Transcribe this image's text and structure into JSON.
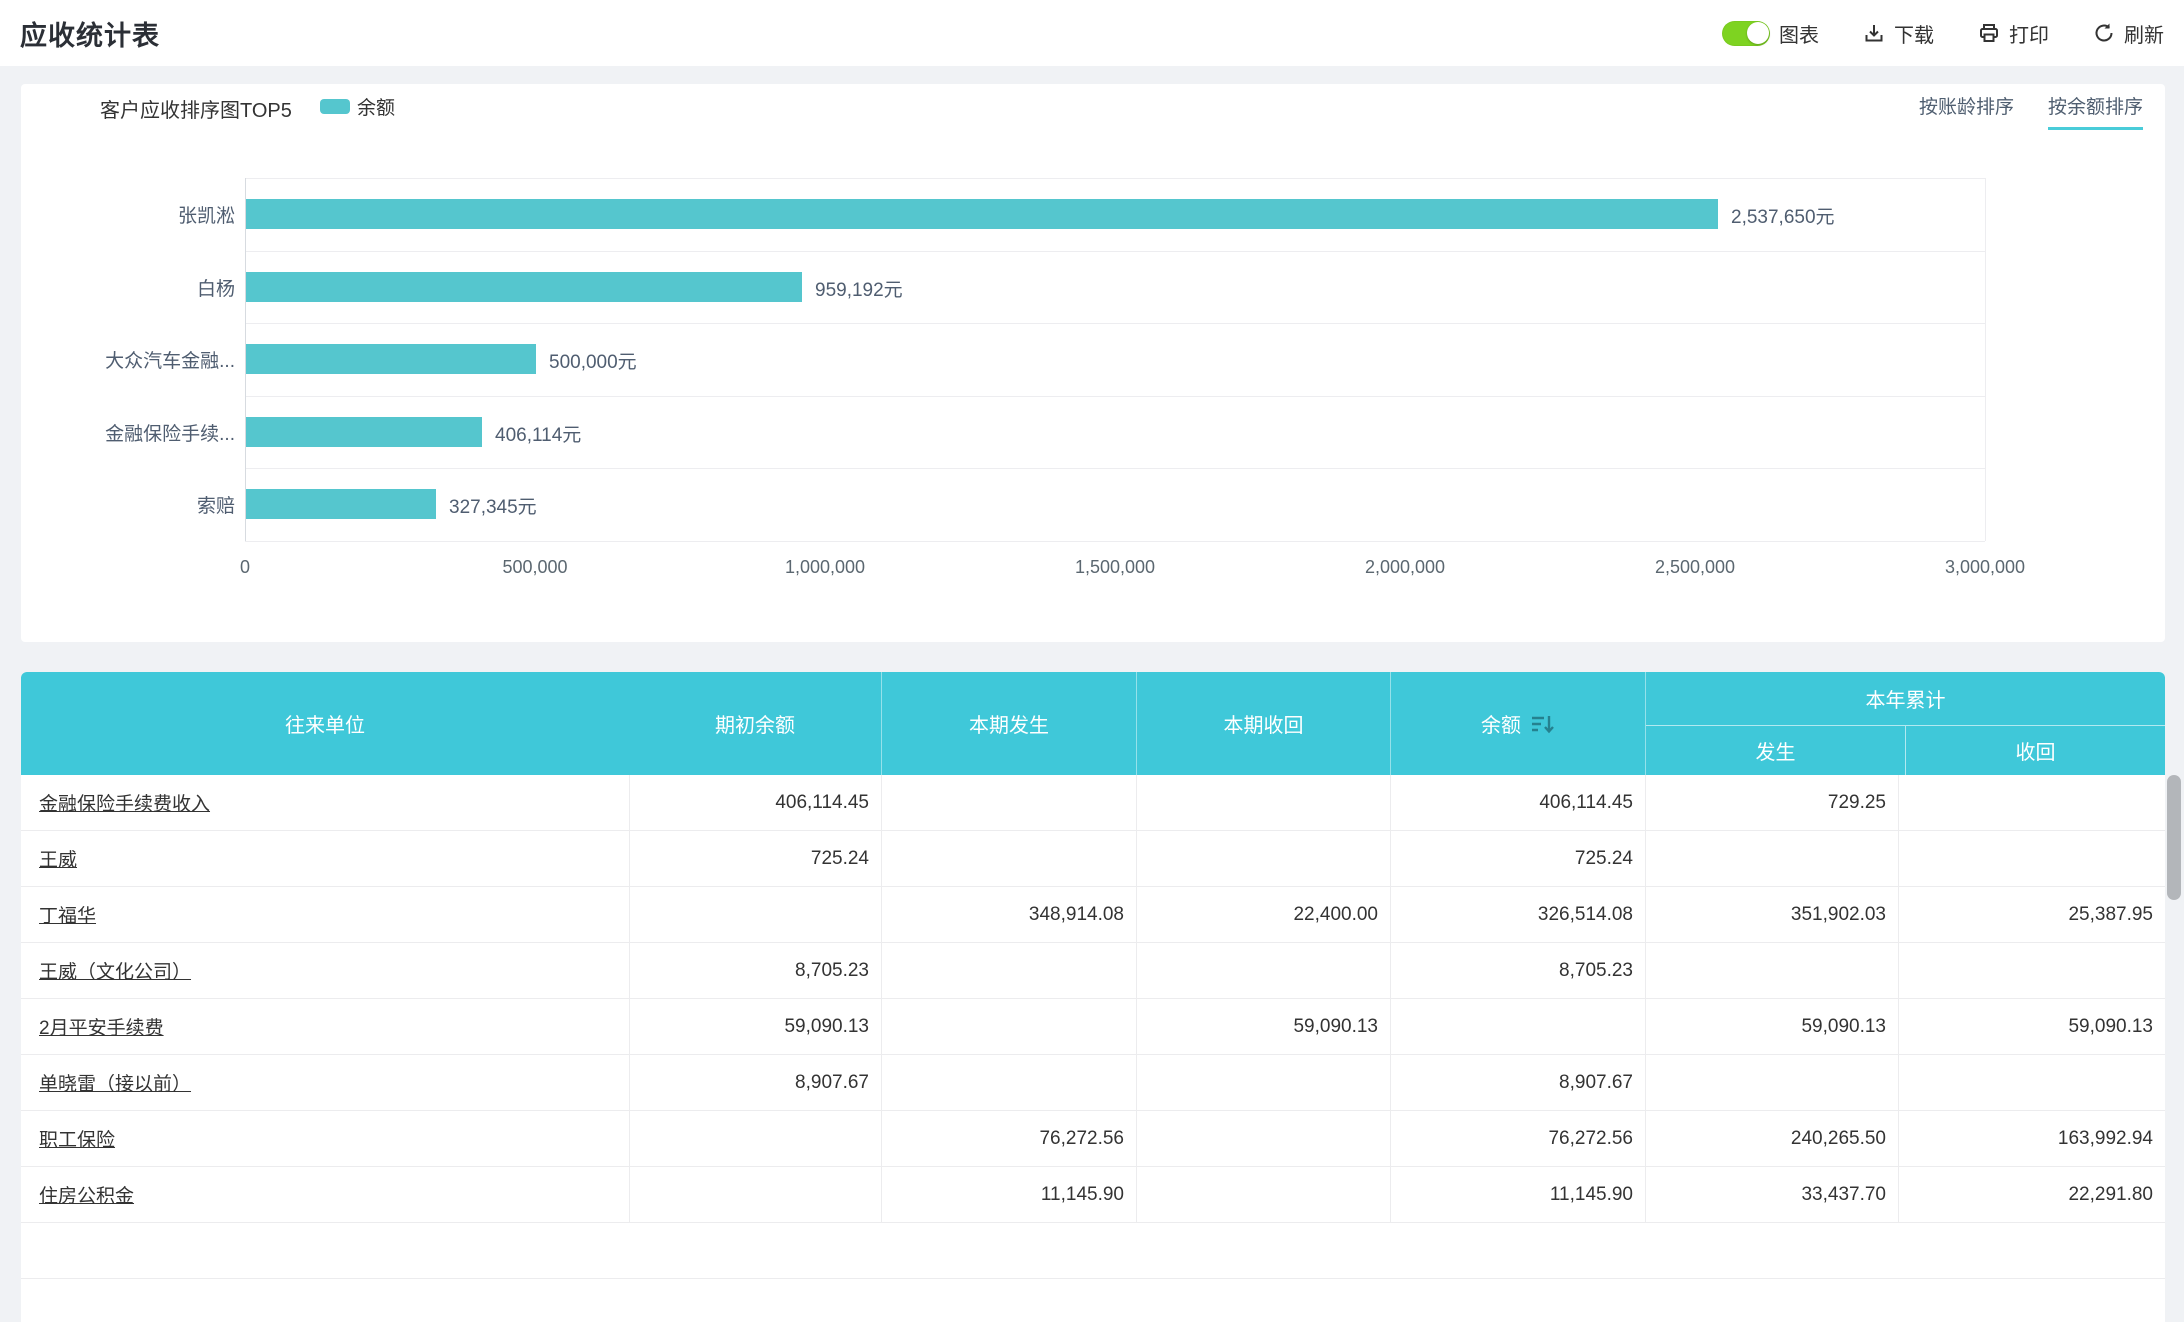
{
  "page": {
    "title": "应收统计表",
    "bg": "#f0f2f5"
  },
  "toolbar": {
    "toggle_label": "图表",
    "toggle_on": true,
    "toggle_color": "#7ed321",
    "download_label": "下载",
    "print_label": "打印",
    "refresh_label": "刷新"
  },
  "chart_panel": {
    "title": "客户应收排序图TOP5",
    "legend": {
      "label": "余额",
      "color": "#55c6ce"
    },
    "sort_tabs": [
      {
        "label": "按账龄排序",
        "active": false
      },
      {
        "label": "按余额排序",
        "active": true
      }
    ]
  },
  "chart_data": {
    "type": "bar",
    "orientation": "horizontal",
    "title": "客户应收排序图TOP5",
    "legend": [
      "余额"
    ],
    "categories": [
      "张凯淞",
      "白杨",
      "大众汽车金融...",
      "金融保险手续...",
      "索赔"
    ],
    "values": [
      2537650,
      959192,
      500000,
      406114,
      327345
    ],
    "value_labels": [
      "2,537,650元",
      "959,192元",
      "500,000元",
      "406,114元",
      "327,345元"
    ],
    "x_ticks": [
      "0",
      "500,000",
      "1,000,000",
      "1,500,000",
      "2,000,000",
      "2,500,000",
      "3,000,000"
    ],
    "xlim": [
      0,
      3000000
    ],
    "bar_color": "#55c6ce",
    "grid": "category split lines, axis line left, boundary line right",
    "legend_position": "top-left"
  },
  "table": {
    "header": {
      "company": "往来单位",
      "opening": "期初余额",
      "period_incurred": "本期发生",
      "period_received": "本期收回",
      "balance": "余额",
      "ytd": "本年累计",
      "ytd_incurred": "发生",
      "ytd_received": "收回"
    },
    "header_bg": "#3fc8d9",
    "rows": [
      {
        "company": "金融保险手续费收入",
        "opening": "406,114.45",
        "period_incurred": "",
        "period_received": "",
        "balance": "406,114.45",
        "ytd_incurred": "729.25",
        "ytd_received": ""
      },
      {
        "company": "王威",
        "opening": "725.24",
        "period_incurred": "",
        "period_received": "",
        "balance": "725.24",
        "ytd_incurred": "",
        "ytd_received": ""
      },
      {
        "company": "丁福华",
        "opening": "",
        "period_incurred": "348,914.08",
        "period_received": "22,400.00",
        "balance": "326,514.08",
        "ytd_incurred": "351,902.03",
        "ytd_received": "25,387.95"
      },
      {
        "company": "王威（文化公司）",
        "opening": "8,705.23",
        "period_incurred": "",
        "period_received": "",
        "balance": "8,705.23",
        "ytd_incurred": "",
        "ytd_received": ""
      },
      {
        "company": "2月平安手续费",
        "opening": "59,090.13",
        "period_incurred": "",
        "period_received": "59,090.13",
        "balance": "",
        "ytd_incurred": "59,090.13",
        "ytd_received": "59,090.13"
      },
      {
        "company": "单晓雷（接以前）",
        "opening": "8,907.67",
        "period_incurred": "",
        "period_received": "",
        "balance": "8,907.67",
        "ytd_incurred": "",
        "ytd_received": ""
      },
      {
        "company": "职工保险",
        "opening": "",
        "period_incurred": "76,272.56",
        "period_received": "",
        "balance": "76,272.56",
        "ytd_incurred": "240,265.50",
        "ytd_received": "163,992.94"
      },
      {
        "company": "住房公积金",
        "opening": "",
        "period_incurred": "11,145.90",
        "period_received": "",
        "balance": "11,145.90",
        "ytd_incurred": "33,437.70",
        "ytd_received": "22,291.80"
      }
    ]
  }
}
